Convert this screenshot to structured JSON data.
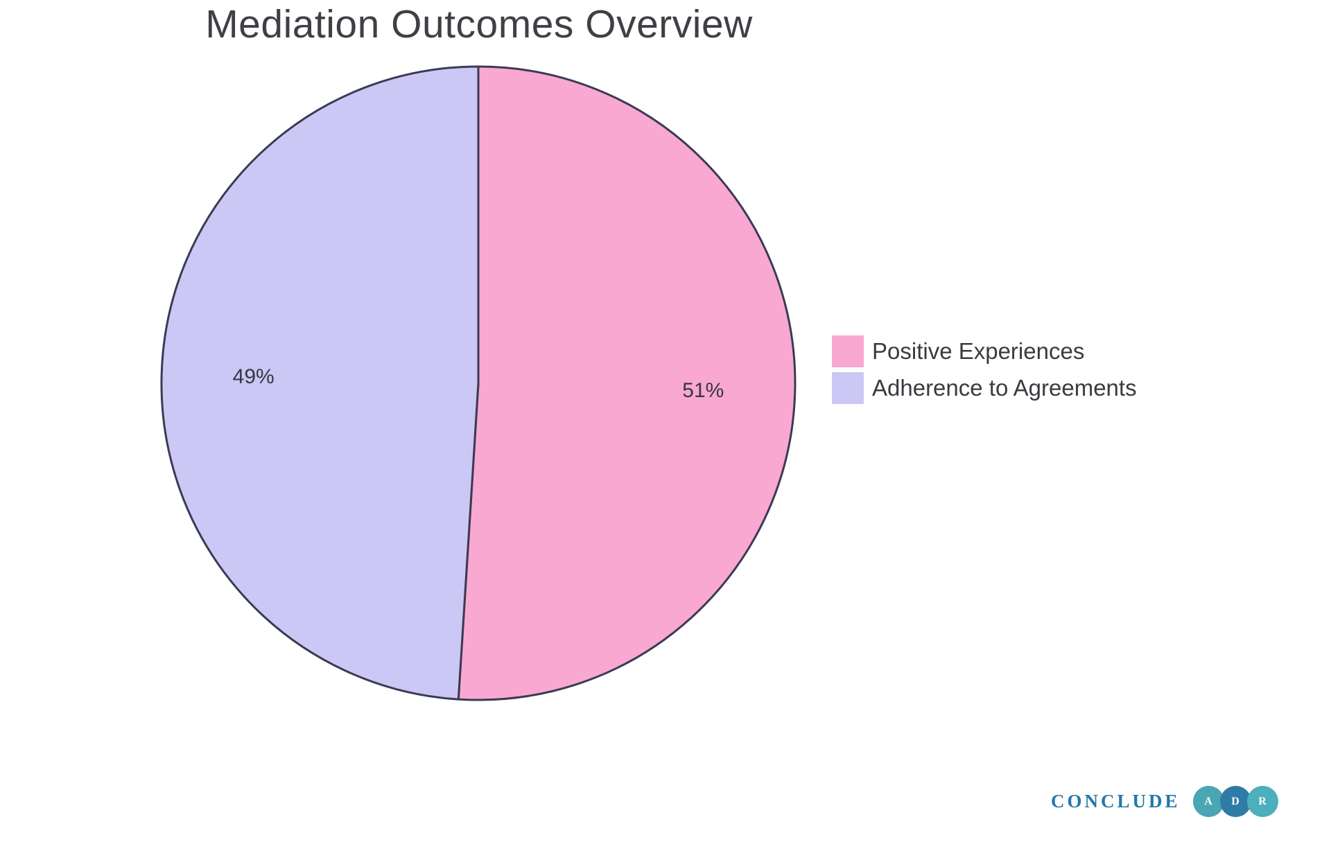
{
  "title": "Mediation Outcomes Overview",
  "chart_data": {
    "type": "pie",
    "title": "Mediation Outcomes Overview",
    "labels": [
      "Positive Experiences",
      "Adherence to Agreements"
    ],
    "values": [
      51,
      49
    ],
    "value_labels": [
      "51%",
      "49%"
    ],
    "colors": [
      "#F9A8D1",
      "#CBC8F5"
    ],
    "slice_border_color": "#3B3A53",
    "start_angle_deg": 0,
    "direction": "clockwise",
    "legend_position": "right",
    "label_text_color": "#363640"
  },
  "legend": {
    "items": [
      {
        "label": "Positive Experiences",
        "color": "#F9A8D1"
      },
      {
        "label": "Adherence to Agreements",
        "color": "#CBC8F5"
      }
    ]
  },
  "logo": {
    "wordmark": "CONCLUDE",
    "wordmark_color": "#2377A8",
    "badges": [
      {
        "letter": "A",
        "color": "#4BA6B3"
      },
      {
        "letter": "D",
        "color": "#2E7CA6"
      },
      {
        "letter": "R",
        "color": "#4BAFBC"
      }
    ]
  }
}
